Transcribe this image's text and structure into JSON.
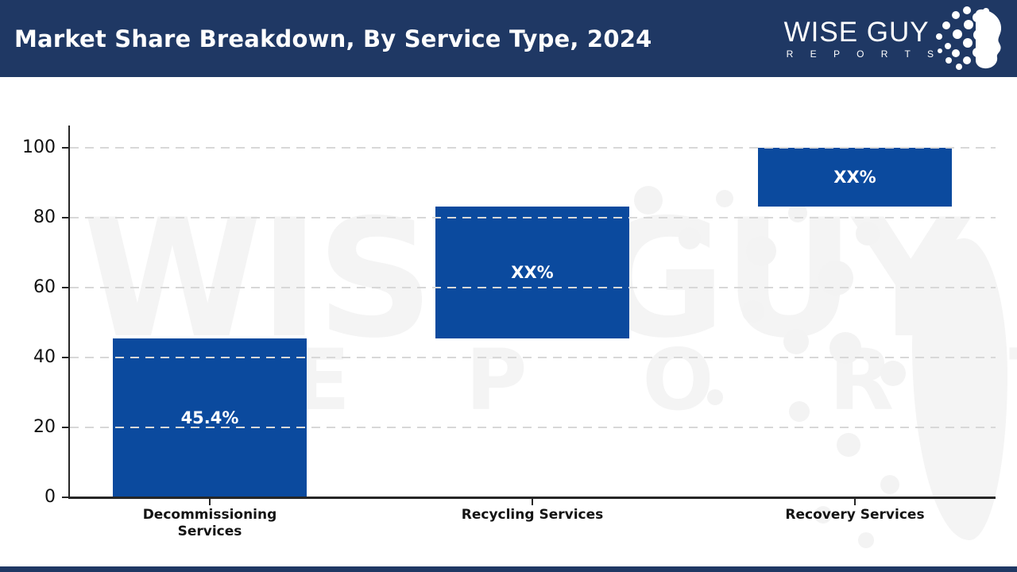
{
  "header": {
    "title": "Market Share Breakdown, By Service Type, 2024",
    "logo": {
      "line1": "WISE GUY",
      "line2": "R E P O R T S"
    }
  },
  "watermark": {
    "line1": "WISE GUY",
    "line2": "R E P O R T S"
  },
  "chart_data": {
    "type": "bar",
    "variant": "waterfall-floating-bars",
    "title": "Market Share Breakdown, By Service Type, 2024",
    "categories": [
      "Decommissioning Services",
      "Recycling Services",
      "Recovery Services"
    ],
    "segments": [
      {
        "category": "Decommissioning Services",
        "start": 0,
        "end": 45.4,
        "label": "45.4%"
      },
      {
        "category": "Recycling Services",
        "start": 45.4,
        "end": 83.2,
        "label": "XX%"
      },
      {
        "category": "Recovery Services",
        "start": 83.2,
        "end": 100,
        "label": "XX%"
      }
    ],
    "yticks": [
      0,
      20,
      40,
      60,
      80,
      100
    ],
    "ylim": [
      0,
      105
    ],
    "xlabel": "",
    "ylabel": "",
    "grid": "horizontal-dashed",
    "legend": "none",
    "bar_color": "#0b4a9e",
    "bar_label_color": "#ffffff",
    "axis_color": "#262626",
    "grid_color": "#d8d8d8"
  },
  "colors": {
    "header_bg": "#1f3864",
    "footer_bg": "#1f3864",
    "page_bg": "#ffffff",
    "watermark": "#f4f4f4"
  }
}
